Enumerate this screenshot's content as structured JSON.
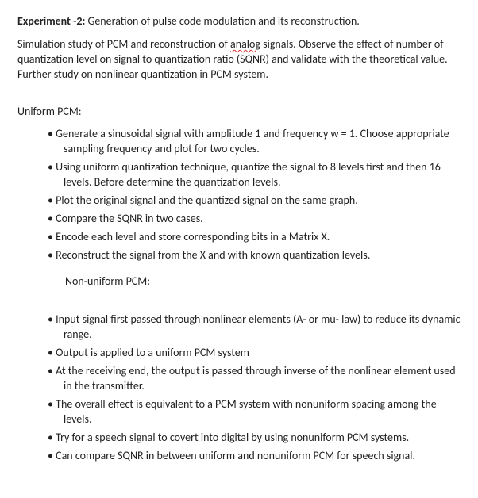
{
  "title_label": "Experiment -2:",
  "title_rest": " Generation of pulse code modulation and its reconstruction.",
  "intro_pre": "Simulation study of PCM and reconstruction of ",
  "intro_squiggle": "analog",
  "intro_post": " signals. Observe the effect of number of quantization level on signal to quantization ratio (SQNR) and validate with the theoretical value. Further study on nonlinear quantization in PCM system.",
  "uniform_heading": "Uniform PCM:",
  "uniform_items": [
    "Generate a sinusoidal signal with amplitude 1 and frequency w = 1. Choose appropriate sampling frequency and plot for two cycles.",
    "Using uniform quantization technique, quantize the signal to 8 levels first and then 16 levels. Before determine the quantization levels.",
    "Plot the original signal and the quantized signal on the same graph.",
    "Compare the SQNR in two cases.",
    "Encode each level and store corresponding bits in a Matrix X.",
    "Reconstruct the signal from the X and with known quantization levels."
  ],
  "nonuniform_heading": "Non-uniform PCM:",
  "nonuniform_items": [
    "Input signal first passed through nonlinear elements (A- or mu- law) to reduce its dynamic range.",
    "Output is applied to a uniform PCM system",
    "At the receiving end, the output is passed through inverse of the nonlinear element used in the transmitter.",
    "The overall effect is equivalent to a PCM system with nonuniform spacing among the levels.",
    "Try for a speech signal to covert into digital by using nonuniform PCM systems.",
    "Can compare SQNR in between uniform and nonuniform PCM for speech signal."
  ],
  "colors": {
    "text": "#222222",
    "background": "#ffffff",
    "spellcheck_underline": "#d22c2c"
  },
  "typography": {
    "base_fontsize_pt": 10.5,
    "title_weight": 700,
    "font_family": "Calibri"
  }
}
